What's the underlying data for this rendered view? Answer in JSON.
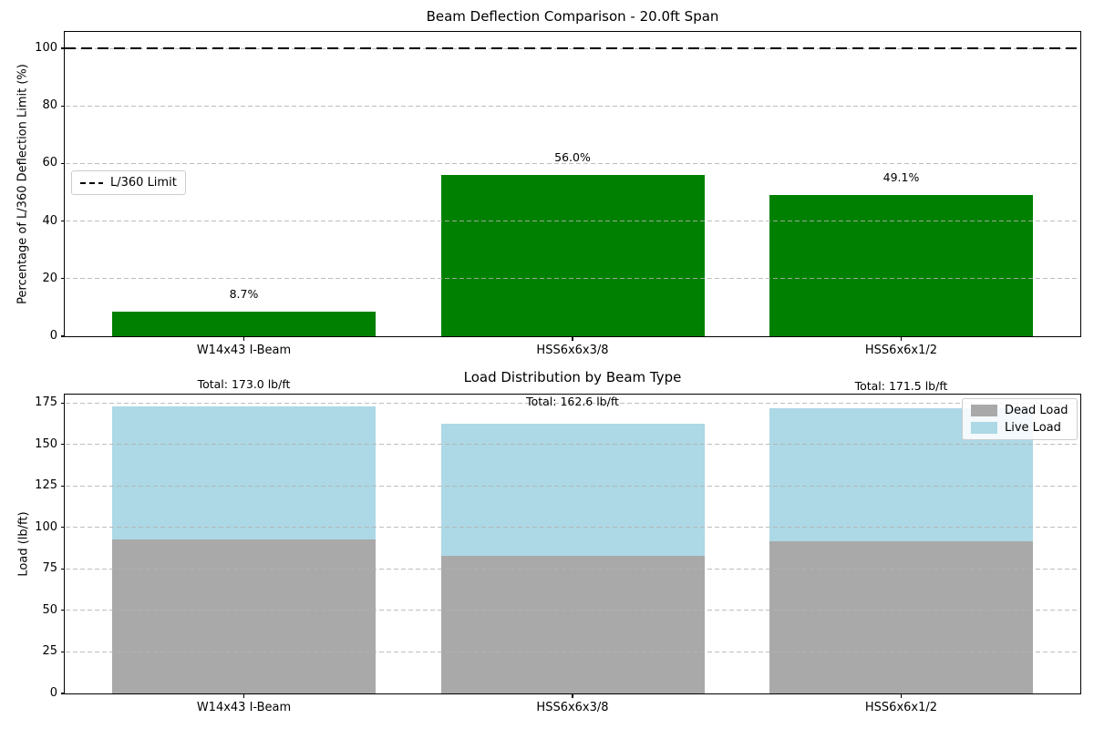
{
  "figure": {
    "background": "#ffffff",
    "grid_color": "#b2b2b2",
    "spine_color": "#000000"
  },
  "chart_data": [
    {
      "type": "bar",
      "title": "Beam Deflection Comparison - 20.0ft Span",
      "ylabel": "Percentage of L/360 Deflection Limit (%)",
      "xlabel": "",
      "categories": [
        "W14x43 I-Beam",
        "HSS6x6x3/8",
        "HSS6x6x1/2"
      ],
      "values": [
        8.7,
        56.0,
        49.1
      ],
      "bar_labels": [
        "8.7%",
        "56.0%",
        "49.1%"
      ],
      "bar_color": "#008000",
      "ylim": [
        0,
        105.7
      ],
      "yticks": [
        0,
        20,
        40,
        60,
        80,
        100
      ],
      "grid": "horizontal-dashed",
      "ref_line": {
        "value": 100,
        "style": "dashed",
        "color": "#000000",
        "label": "L/360 Limit"
      },
      "legend": {
        "position": "center-left",
        "entries": [
          {
            "label": "L/360 Limit",
            "swatch": "dashed-line",
            "color": "#000000"
          }
        ]
      }
    },
    {
      "type": "bar-stacked",
      "title": "Load Distribution by Beam Type",
      "ylabel": "Load (lb/ft)",
      "xlabel": "",
      "categories": [
        "W14x43 I-Beam",
        "HSS6x6x3/8",
        "HSS6x6x1/2"
      ],
      "series": [
        {
          "name": "Dead Load",
          "color": "#a9a9a9",
          "values": [
            93.0,
            82.6,
            91.5
          ]
        },
        {
          "name": "Live Load",
          "color": "#add8e6",
          "values": [
            80.0,
            80.0,
            80.0
          ]
        }
      ],
      "totals": [
        173.0,
        162.6,
        171.5
      ],
      "total_labels": [
        "Total: 173.0 lb/ft",
        "Total: 162.6 lb/ft",
        "Total: 171.5 lb/ft"
      ],
      "ylim": [
        0,
        180
      ],
      "yticks": [
        0,
        25,
        50,
        75,
        100,
        125,
        150,
        175
      ],
      "grid": "horizontal-dashed",
      "legend": {
        "position": "upper-right",
        "entries": [
          {
            "label": "Dead Load",
            "swatch": "patch",
            "color": "#a9a9a9"
          },
          {
            "label": "Live Load",
            "swatch": "patch",
            "color": "#add8e6"
          }
        ]
      }
    }
  ]
}
